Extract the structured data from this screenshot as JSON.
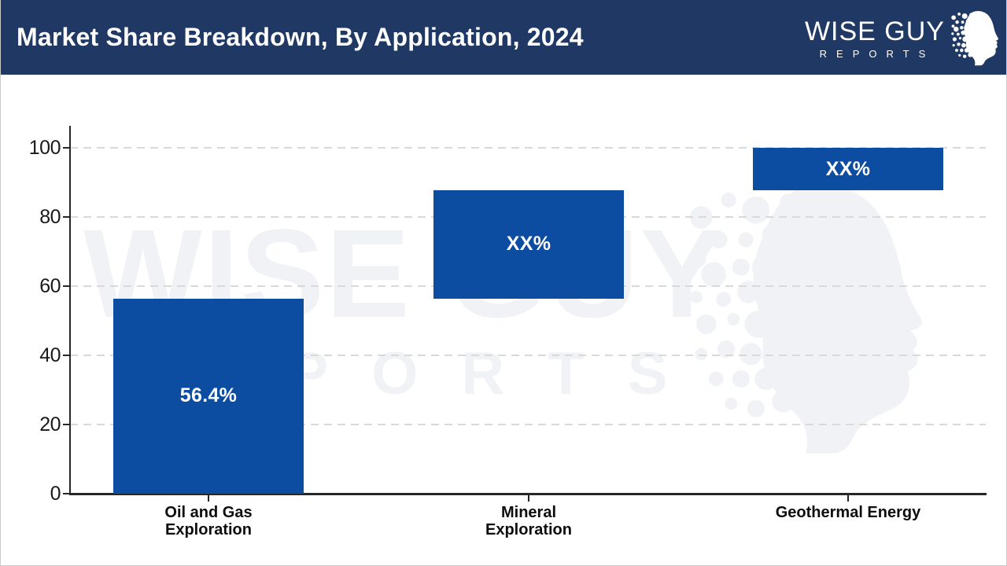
{
  "header": {
    "title": "Market Share Breakdown, By Application, 2024",
    "bg_color": "#1f3864",
    "logo": {
      "line1": "WISE GUY",
      "line2": "REPORTS"
    }
  },
  "watermark": {
    "line1": "WISE GUY",
    "line2": "REPORTS"
  },
  "chart_data": {
    "type": "bar",
    "subtype": "waterfall",
    "title": "Market Share Breakdown, By Application, 2024",
    "categories": [
      "Oil and Gas Exploration",
      "Mineral Exploration",
      "Geothermal Energy"
    ],
    "category_lines": [
      [
        "Oil and Gas",
        "Exploration"
      ],
      [
        "Mineral",
        "Exploration"
      ],
      [
        "Geothermal Energy"
      ]
    ],
    "series": [
      {
        "category": "Oil and Gas Exploration",
        "label": "56.4%",
        "start": 0,
        "end": 56.4
      },
      {
        "category": "Mineral Exploration",
        "label": "XX%",
        "start": 56.4,
        "end": 87.7
      },
      {
        "category": "Geothermal Energy",
        "label": "XX%",
        "start": 87.7,
        "end": 99.9
      }
    ],
    "ylim": [
      0,
      100
    ],
    "yticks": [
      0,
      20,
      40,
      60,
      80,
      100
    ],
    "grid": "dashed horizontal",
    "legend": "none",
    "bar_color": "#0c4da2",
    "axis_color": "#262626",
    "grid_color": "#d9d9d9",
    "watermark_color": "#f1f2f5"
  }
}
